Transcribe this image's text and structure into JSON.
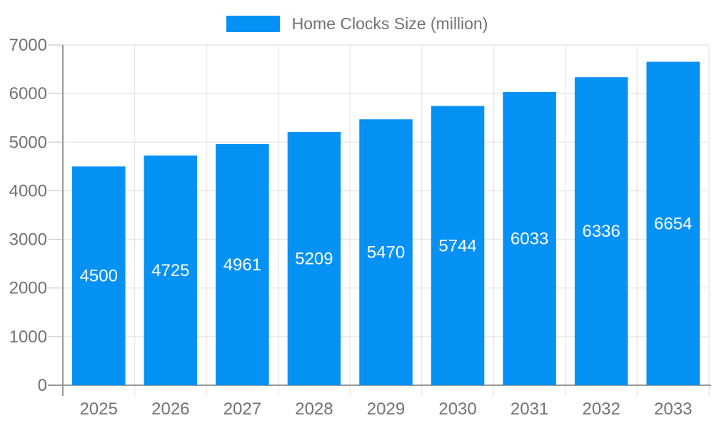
{
  "chart_data": {
    "type": "bar",
    "title": "Home Clocks Size (million)",
    "categories": [
      "2025",
      "2026",
      "2027",
      "2028",
      "2029",
      "2030",
      "2031",
      "2032",
      "2033"
    ],
    "values": [
      4500,
      4725,
      4961,
      5209,
      5470,
      5744,
      6033,
      6336,
      6654
    ],
    "xlabel": "",
    "ylabel": "",
    "ylim": [
      0,
      7000
    ],
    "ytick_step": 1000,
    "yticks": [
      0,
      1000,
      2000,
      3000,
      4000,
      5000,
      6000,
      7000
    ],
    "grid": true,
    "bar_labels_visible": true,
    "legend": {
      "label": "Home Clocks Size (million)",
      "position": "top-center"
    }
  },
  "colors": {
    "bar": "#0691F5",
    "axis": "#999999",
    "grid": "#E8E8E8",
    "tick": "#D2D2D2",
    "text": "#737373",
    "bar_label": "#FFFFFF",
    "background": "#FFFFFF"
  }
}
